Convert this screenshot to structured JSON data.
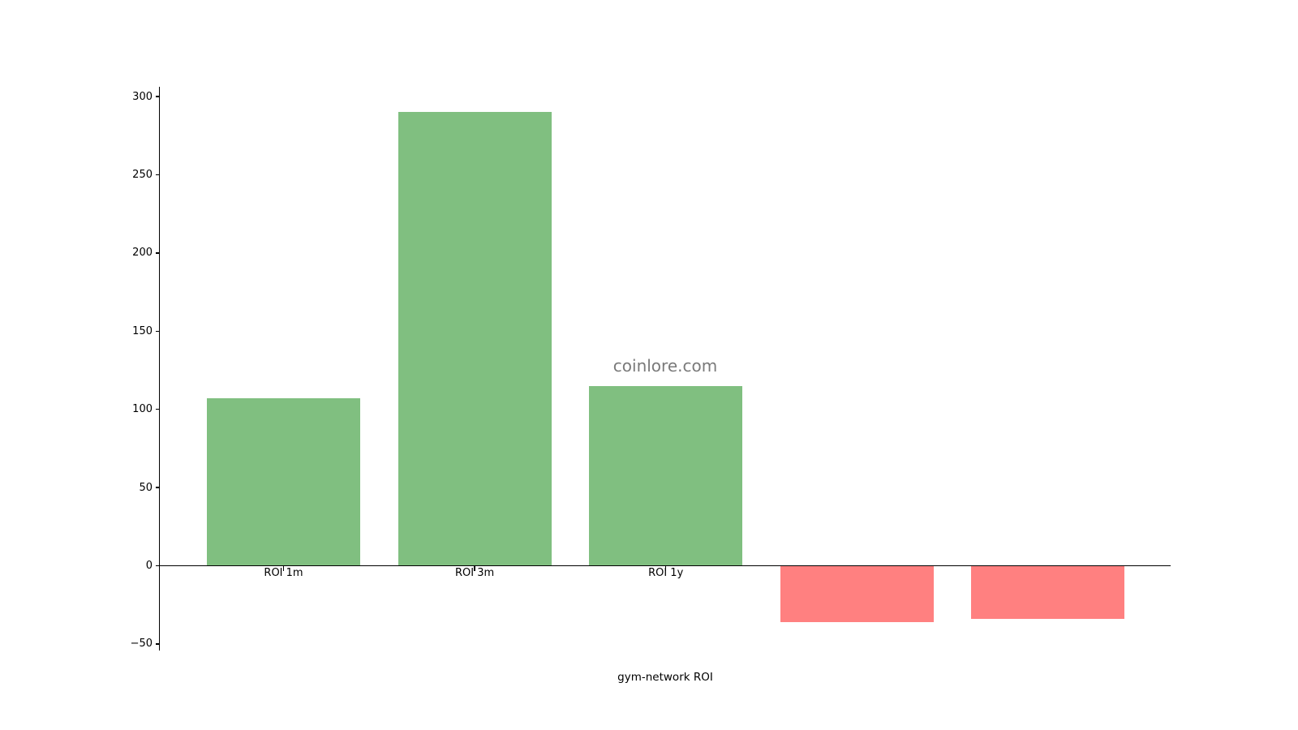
{
  "chart_data": {
    "type": "bar",
    "title": "",
    "xlabel": "gym-network ROI",
    "ylabel": "",
    "categories": [
      "ROI 1m",
      "ROI 3m",
      "ROI 1y",
      "",
      ""
    ],
    "values": [
      107,
      290,
      115,
      -36,
      -34
    ],
    "bar_color_positive": "#80bf80",
    "bar_color_negative": "#ff8080",
    "axis_color": "#000000",
    "yticks": [
      300,
      250,
      200,
      150,
      100,
      50,
      0,
      -50
    ],
    "ytick_labels": [
      "300",
      "250",
      "200",
      "150",
      "100",
      "50",
      "0",
      "−50"
    ],
    "ylim": [
      -54,
      306
    ],
    "grid": false,
    "legend": false,
    "background": "#ffffff"
  },
  "watermark": {
    "text": "coinlore.com",
    "color": "#7a7a7a"
  }
}
